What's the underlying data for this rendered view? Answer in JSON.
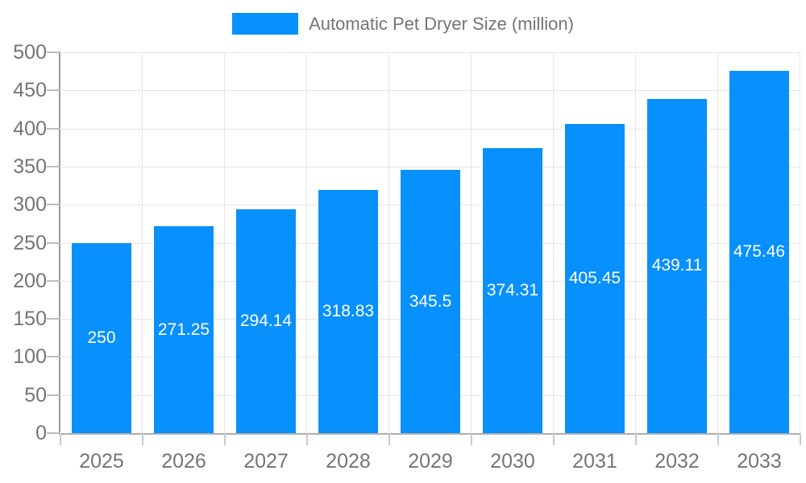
{
  "chart_data": {
    "type": "bar",
    "title": "Automatic Pet Dryer Size (million)",
    "legend": [
      "Automatic Pet Dryer Size (million)"
    ],
    "legend_position": "top-center",
    "categories": [
      "2025",
      "2026",
      "2027",
      "2028",
      "2029",
      "2030",
      "2031",
      "2032",
      "2033"
    ],
    "series": [
      {
        "name": "Automatic Pet Dryer Size (million)",
        "values": [
          250,
          271.25,
          294.14,
          318.83,
          345.5,
          374.31,
          405.45,
          439.11,
          475.46
        ],
        "value_labels": [
          "250",
          "271.25",
          "294.14",
          "318.83",
          "345.5",
          "374.31",
          "405.45",
          "439.11",
          "475.46"
        ]
      }
    ],
    "xlabel": "",
    "ylabel": "",
    "ylim": [
      0,
      500
    ],
    "ytick_step": 50,
    "yticks": [
      0,
      50,
      100,
      150,
      200,
      250,
      300,
      350,
      400,
      450,
      500
    ],
    "grid": true,
    "bar_width_fraction": 0.73,
    "colors": {
      "bar": "#0890fc",
      "bar_value_label": "#ffffff",
      "axis_text": "#757575",
      "gridline": "#e6e6e6",
      "axis_line": "#9a9a9a"
    }
  }
}
